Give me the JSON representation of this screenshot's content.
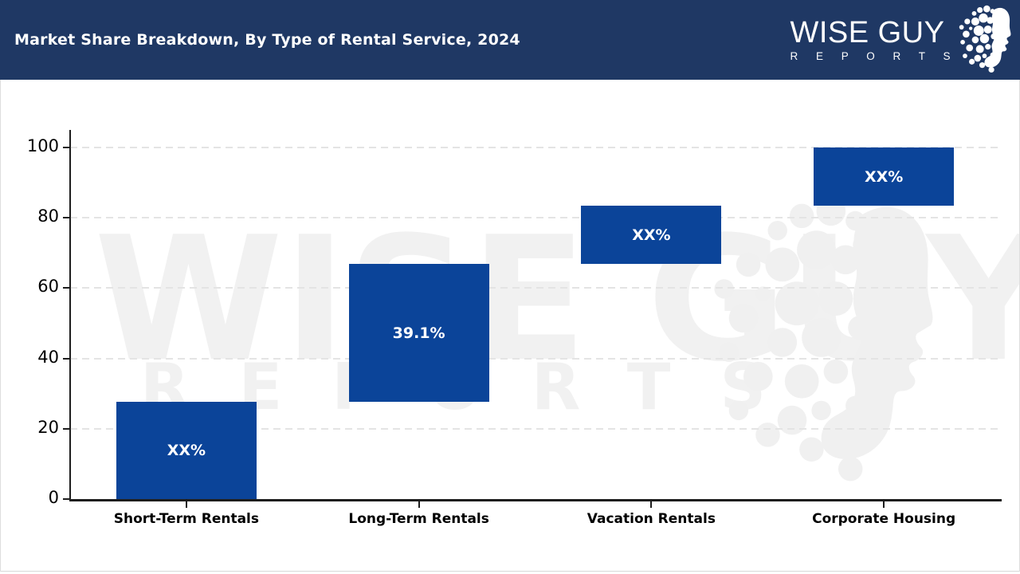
{
  "header": {
    "title": "Market Share Breakdown, By Type of Rental Service, 2024",
    "background_color": "#1f3864",
    "logo": {
      "wordmark": "WISE GUY",
      "subtitle": "R E P O R T S"
    }
  },
  "watermark": {
    "line1": "WISE GUY",
    "line2": "REPORTS"
  },
  "chart_data": {
    "type": "bar",
    "variant": "waterfall",
    "title": "Market Share Breakdown, By Type of Rental Service, 2024",
    "categories": [
      "Short-Term Rentals",
      "Long-Term Rentals",
      "Vacation Rentals",
      "Corporate Housing"
    ],
    "segments": [
      {
        "category": "Short-Term Rentals",
        "start": 0,
        "end": 27.7,
        "value": 27.7,
        "label": "XX%"
      },
      {
        "category": "Long-Term Rentals",
        "start": 27.7,
        "end": 66.8,
        "value": 39.1,
        "label": "39.1%"
      },
      {
        "category": "Vacation Rentals",
        "start": 66.8,
        "end": 83.4,
        "value": 16.6,
        "label": "XX%"
      },
      {
        "category": "Corporate Housing",
        "start": 83.4,
        "end": 100,
        "value": 16.6,
        "label": "XX%"
      }
    ],
    "y_ticks": [
      0,
      20,
      40,
      60,
      80,
      100
    ],
    "ylim": [
      0,
      105
    ],
    "xlabel": "",
    "ylabel": "",
    "grid": {
      "horizontal": true,
      "style": "dashed",
      "color": "#e4e4e4"
    },
    "legend": "none",
    "bar_color": "#0b4499",
    "bar_label_color": "#ffffff",
    "axis_color": "#1d1d1d"
  }
}
